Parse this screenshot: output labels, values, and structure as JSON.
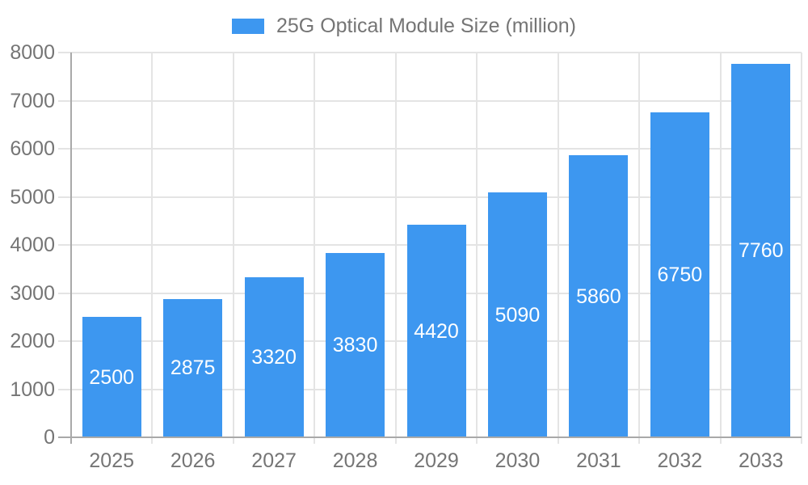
{
  "chart_data": {
    "type": "bar",
    "legend_label": "25G Optical Module Size (million)",
    "categories": [
      "2025",
      "2026",
      "2027",
      "2028",
      "2029",
      "2030",
      "2031",
      "2032",
      "2033"
    ],
    "values": [
      2500,
      2875,
      3320,
      3830,
      4420,
      5090,
      5860,
      6750,
      7760
    ],
    "xlabel": "",
    "ylabel": "",
    "ylim": [
      0,
      8000
    ],
    "y_ticks": [
      0,
      1000,
      2000,
      3000,
      4000,
      5000,
      6000,
      7000,
      8000
    ],
    "grid": true,
    "legend_position": "top-center",
    "bar_value_labels": "inside-center"
  },
  "colors": {
    "bar": "#3d97f0",
    "bar_value_text": "#ffffff",
    "axis_text": "#757575",
    "axis_line": "#a9a9a9",
    "grid_line": "#e4e4e4",
    "background": "#ffffff"
  }
}
